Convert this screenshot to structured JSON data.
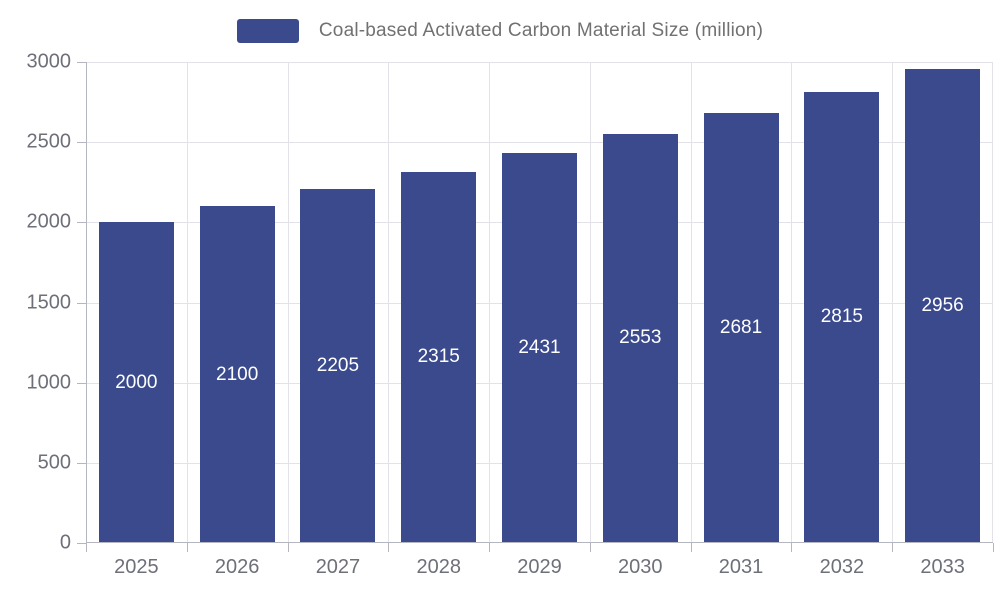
{
  "legend": {
    "label": "Coal-based Activated Carbon Material Size (million)"
  },
  "chart_data": {
    "type": "bar",
    "title": "",
    "xlabel": "",
    "ylabel": "",
    "series_name": "Coal-based Activated Carbon Material Size (million)",
    "categories": [
      "2025",
      "2026",
      "2027",
      "2028",
      "2029",
      "2030",
      "2031",
      "2032",
      "2033"
    ],
    "values": [
      2000,
      2100,
      2205,
      2315,
      2431,
      2553,
      2681,
      2815,
      2956
    ],
    "value_labels": [
      "2000",
      "2100",
      "2205",
      "2315",
      "2431",
      "2553",
      "2681",
      "2815",
      "2956"
    ],
    "ylim": [
      0,
      3000
    ],
    "yticks": [
      0,
      500,
      1000,
      1500,
      2000,
      2500,
      3000
    ],
    "grid": true,
    "legend_position": "top",
    "colors": {
      "bar": "#3A4A8C",
      "value_label": "#FFFFFF",
      "axis_text": "#6E7079",
      "legend_text": "#717171",
      "gridline": "#E2E2E8",
      "axis_line": "#B4B7C0"
    }
  }
}
